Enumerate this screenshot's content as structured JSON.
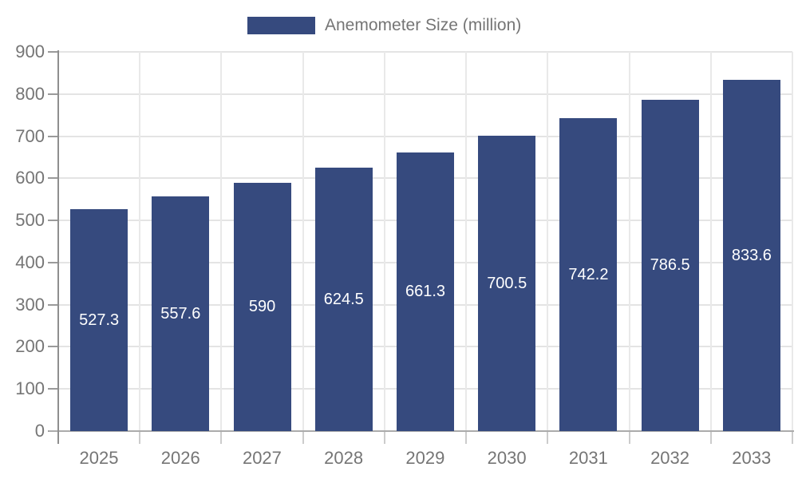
{
  "chart_data": {
    "type": "bar",
    "legend": "Anemometer Size (million)",
    "categories": [
      "2025",
      "2026",
      "2027",
      "2028",
      "2029",
      "2030",
      "2031",
      "2032",
      "2033"
    ],
    "values": [
      527.3,
      557.6,
      590,
      624.5,
      661.3,
      700.5,
      742.2,
      786.5,
      833.6
    ],
    "bar_labels": [
      "527.3",
      "557.6",
      "590",
      "624.5",
      "661.3",
      "700.5",
      "742.2",
      "786.5",
      "833.6"
    ],
    "ylim": [
      0,
      900
    ],
    "y_ticks": [
      0,
      100,
      200,
      300,
      400,
      500,
      600,
      700,
      800,
      900
    ],
    "grid": true,
    "legend_position": "top",
    "colors": {
      "bar": "#364a7e",
      "bar_label_text": "#ffffff",
      "axis_text": "#757575",
      "legend_text": "#757575",
      "grid_h": "#e4e4e4",
      "grid_v": "#e9e9e9",
      "y_axis_line": "#8f8f8f",
      "x_axis_line": "#ababab",
      "x_tick": "#cccccc",
      "y_tick": "#9a9a9a",
      "background": "#ffffff"
    }
  }
}
